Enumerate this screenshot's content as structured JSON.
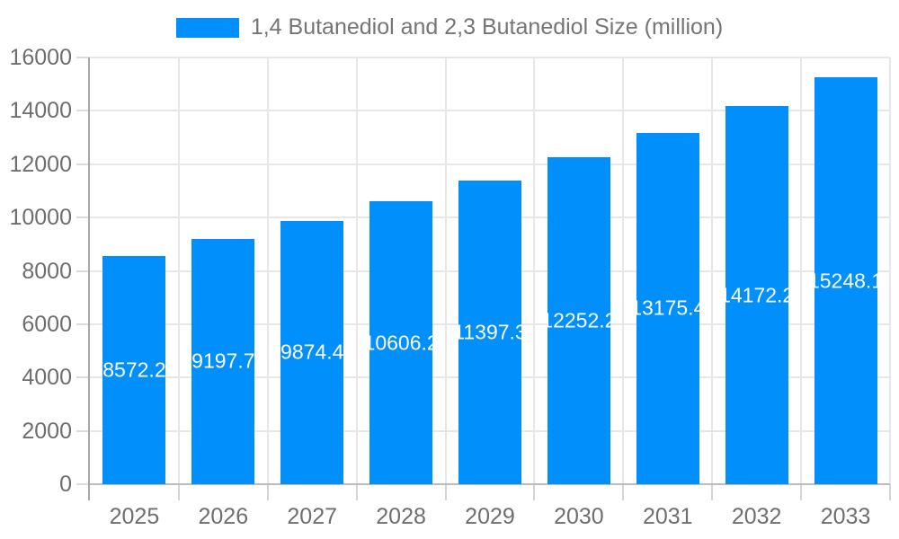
{
  "legend": {
    "label": "1,4 Butanediol and 2,3 Butanediol Size (million)",
    "swatch_color": "#008FFB"
  },
  "chart_data": {
    "type": "bar",
    "title": "1,4 Butanediol and 2,3 Butanediol Size (million)",
    "series_name": "1,4 Butanediol and 2,3 Butanediol Size (million)",
    "categories": [
      "2025",
      "2026",
      "2027",
      "2028",
      "2029",
      "2030",
      "2031",
      "2032",
      "2033"
    ],
    "values": [
      8572.2,
      9197.7,
      9874.4,
      10606.2,
      11397.3,
      12252.2,
      13175.4,
      14172.2,
      15248.1
    ],
    "value_labels": [
      "8572.2",
      "9197.7",
      "9874.4",
      "10606.2",
      "11397.3",
      "12252.2",
      "13175.4",
      "14172.2",
      "15248.1"
    ],
    "xlabel": "",
    "ylabel": "",
    "ylim": [
      0,
      16000
    ],
    "ytick_step": 2000,
    "ytick_labels": [
      "0",
      "2000",
      "4000",
      "6000",
      "8000",
      "10000",
      "12000",
      "14000",
      "16000"
    ],
    "grid": true,
    "legend_position": "top",
    "bar_color": "#008FFB",
    "value_label_color": "#ffffff",
    "axis_label_color": "#6e6e6e",
    "gridline_color": "#e7e7e7",
    "axis_line_color": "#a8a8a8"
  }
}
